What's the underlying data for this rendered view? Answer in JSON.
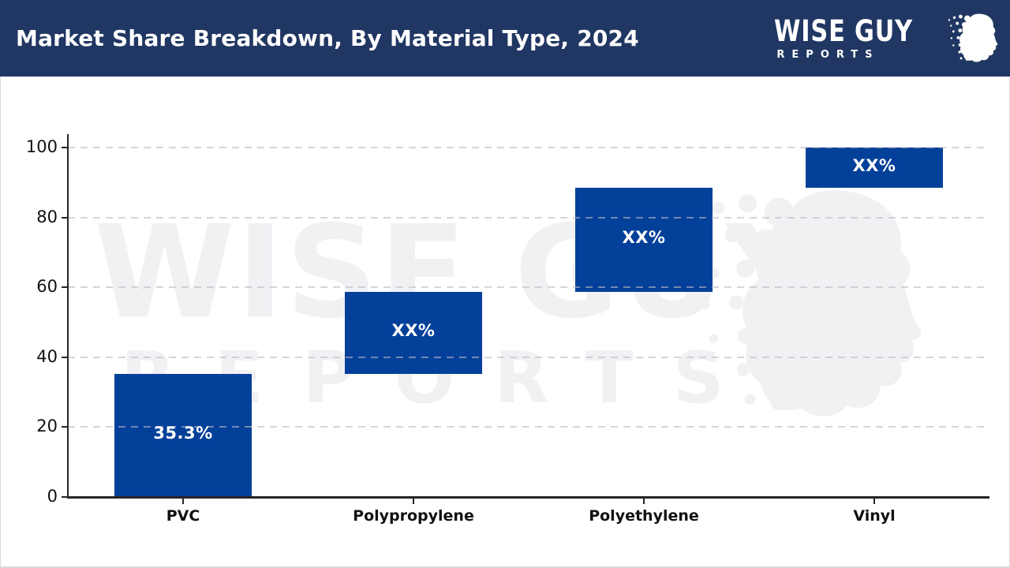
{
  "header": {
    "title": "Market Share Breakdown, By Material Type, 2024",
    "logo": {
      "line1": "WISE GUY",
      "line2": "REPORTS"
    }
  },
  "watermark": {
    "line1": "WISE GUY",
    "line2": "REPORTS"
  },
  "chart_data": {
    "type": "bar",
    "subtype": "waterfall",
    "title": "Market Share Breakdown, By Material Type, 2024",
    "categories": [
      "PVC",
      "Polypropylene",
      "Polyethylene",
      "Vinyl"
    ],
    "series": [
      {
        "name": "Market Share",
        "segments": [
          {
            "category": "PVC",
            "start": 0,
            "end": 35.3,
            "label": "35.3%"
          },
          {
            "category": "Polypropylene",
            "start": 35.3,
            "end": 58.8,
            "label": "XX%"
          },
          {
            "category": "Polyethylene",
            "start": 58.8,
            "end": 88.4,
            "label": "XX%"
          },
          {
            "category": "Vinyl",
            "start": 88.4,
            "end": 100,
            "label": "XX%"
          }
        ]
      }
    ],
    "xlabel": "",
    "ylabel": "",
    "ylim": [
      0,
      100
    ],
    "yticks": [
      0,
      20,
      40,
      60,
      80,
      100
    ],
    "grid": "horizontal-dashed",
    "legend": "none",
    "colors": {
      "bar": "#03409a",
      "bar_label": "#ffffff",
      "axis": "#262626",
      "tick_label": "#111111",
      "grid": "#e0e0e0",
      "header_bg": "#213763",
      "header_text": "#ffffff",
      "watermark": "#f1f1f4"
    }
  }
}
